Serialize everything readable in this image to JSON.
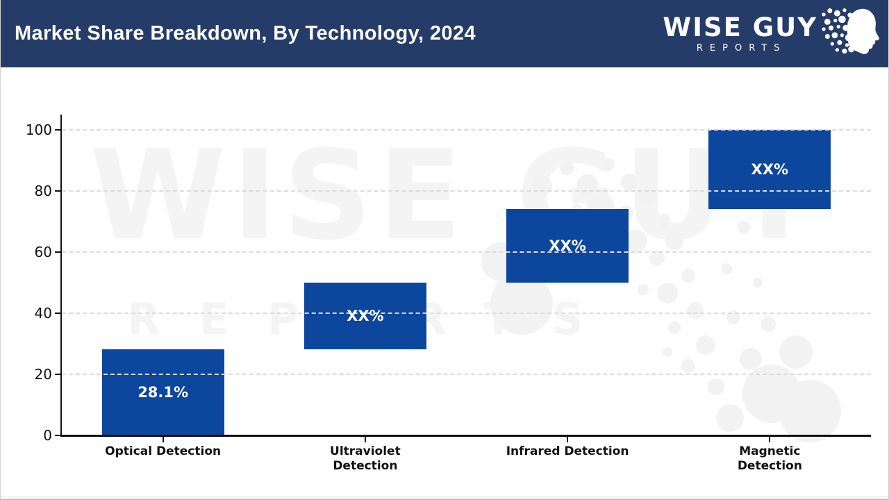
{
  "header": {
    "title": "Market Share Breakdown, By Technology, 2024",
    "logo": {
      "name": "WISE GUY",
      "subtitle": "REPORTS"
    }
  },
  "watermark": {
    "name": "WISE GUY",
    "subtitle": "REPORTS"
  },
  "colors": {
    "header_bg": "#253c68",
    "bar": "#0d469d",
    "bar_label": "#ffffff",
    "grid": "#dcdcdc",
    "axis": "#111111",
    "watermark": "#f4f4f5"
  },
  "chart_data": {
    "type": "bar",
    "subtype": "waterfall",
    "title": "Market Share Breakdown, By Technology, 2024",
    "categories": [
      "Optical Detection",
      "Ultraviolet Detection",
      "Infrared Detection",
      "Magnetic Detection"
    ],
    "xtick_labels": [
      "Optical Detection",
      "Ultraviolet\nDetection",
      "Infrared Detection",
      "Magnetic Detection"
    ],
    "segments": [
      {
        "category": "Optical Detection",
        "start": 0,
        "end": 28.1,
        "label": "28.1%"
      },
      {
        "category": "Ultraviolet Detection",
        "start": 28.1,
        "end": 50,
        "label": "XX%"
      },
      {
        "category": "Infrared Detection",
        "start": 50,
        "end": 74,
        "label": "XX%"
      },
      {
        "category": "Magnetic Detection",
        "start": 74,
        "end": 100,
        "label": "XX%"
      }
    ],
    "xlabel": "",
    "ylabel": "",
    "yticks": [
      0,
      20,
      40,
      60,
      80,
      100
    ],
    "ylim": [
      0,
      105
    ],
    "grid": "horizontal-dashed",
    "legend_position": "none",
    "bar_color": "#0d469d",
    "value_label_color": "#ffffff"
  }
}
